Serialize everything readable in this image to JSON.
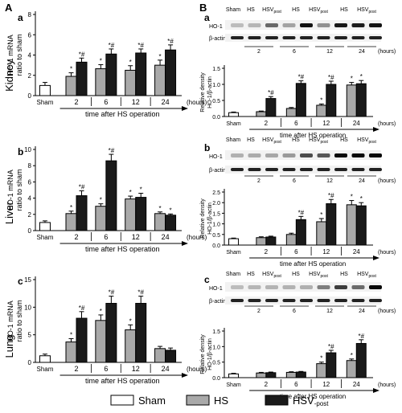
{
  "panel_labels": {
    "A": "A",
    "B": "B"
  },
  "organs": [
    "Kidney",
    "Liver",
    "Lung"
  ],
  "a_panel_letters": [
    "a",
    "b",
    "c"
  ],
  "b_panel_letters": [
    "a",
    "b",
    "c"
  ],
  "a_ylabel": [
    "HO-1 mRNA",
    "ratio to sham"
  ],
  "b_ylabel": [
    "Relative density",
    "HO-1/β-actin"
  ],
  "xlabel": "time after HS operation",
  "hours_label": "(hours)",
  "sham_label": "Sham",
  "blot_labels": {
    "ho1": "HO-1",
    "actin": "β-actin"
  },
  "blot_lane_headers": [
    "Sham",
    "HS",
    "HSV",
    "HS",
    "HSV",
    "HS",
    "HSV"
  ],
  "blot_lane_subscript": "post",
  "legend": [
    {
      "label": "Sham",
      "sub": "",
      "color": "#ffffff"
    },
    {
      "label": "HS",
      "sub": "",
      "color": "#a9a9a9"
    },
    {
      "label": "HSV",
      "sub": "-post",
      "color": "#1a1a1a"
    }
  ],
  "colors": {
    "sham": "#ffffff",
    "hs": "#a9a9a9",
    "hsv": "#1a1a1a"
  },
  "chart_data": [
    {
      "id": "A-a",
      "type": "bar",
      "organ": "Kidney",
      "panel": "a",
      "categories": [
        "2",
        "6",
        "12",
        "24"
      ],
      "yticks": [
        0,
        2,
        4,
        6,
        8
      ],
      "ylim": [
        0,
        8
      ],
      "sham": {
        "value": 1.0,
        "err": 0.3
      },
      "series": [
        {
          "name": "HS",
          "values": [
            1.9,
            2.65,
            2.5,
            3.0
          ],
          "err": [
            0.35,
            0.4,
            0.45,
            0.5
          ],
          "marks": [
            "*",
            "*",
            "*",
            "*"
          ]
        },
        {
          "name": "HSV",
          "values": [
            3.3,
            4.1,
            4.2,
            4.5
          ],
          "err": [
            0.4,
            0.5,
            0.4,
            0.5
          ],
          "marks": [
            "*#",
            "*#",
            "*#",
            "*#"
          ]
        }
      ]
    },
    {
      "id": "A-b",
      "type": "bar",
      "organ": "Liver",
      "panel": "b",
      "categories": [
        "2",
        "6",
        "12",
        "24"
      ],
      "yticks": [
        0,
        2,
        4,
        6,
        8,
        10
      ],
      "ylim": [
        0,
        10
      ],
      "sham": {
        "value": 1.0,
        "err": 0.2
      },
      "series": [
        {
          "name": "HS",
          "values": [
            2.1,
            3.0,
            3.9,
            2.1
          ],
          "err": [
            0.3,
            0.3,
            0.35,
            0.2
          ],
          "marks": [
            "*",
            "*",
            "*",
            "*"
          ]
        },
        {
          "name": "HSV",
          "values": [
            4.3,
            8.6,
            4.1,
            1.9
          ],
          "err": [
            0.6,
            0.8,
            0.5,
            0.15
          ],
          "marks": [
            "*#",
            "*#",
            "*",
            "*"
          ]
        }
      ]
    },
    {
      "id": "A-c",
      "type": "bar",
      "organ": "Lung",
      "panel": "c",
      "categories": [
        "2",
        "6",
        "12",
        "24"
      ],
      "yticks": [
        0,
        5,
        10,
        15
      ],
      "ylim": [
        0,
        15
      ],
      "sham": {
        "value": 1.2,
        "err": 0.3
      },
      "series": [
        {
          "name": "HS",
          "values": [
            3.7,
            7.6,
            5.9,
            2.5
          ],
          "err": [
            0.6,
            1.0,
            0.9,
            0.4
          ],
          "marks": [
            "*",
            "*",
            "*",
            ""
          ]
        },
        {
          "name": "HSV",
          "values": [
            8.0,
            10.7,
            10.7,
            2.2
          ],
          "err": [
            1.2,
            1.3,
            1.3,
            0.4
          ],
          "marks": [
            "*#",
            "*#",
            "*#",
            ""
          ]
        }
      ]
    },
    {
      "id": "B-a",
      "type": "bar",
      "organ": "Kidney",
      "panel": "a",
      "categories": [
        "2",
        "6",
        "12",
        "24"
      ],
      "yticks": [
        0.0,
        0.5,
        1.0,
        1.5
      ],
      "ylim": [
        0,
        1.5
      ],
      "sham": {
        "value": 0.12,
        "err": 0.02
      },
      "series": [
        {
          "name": "HS",
          "values": [
            0.15,
            0.25,
            0.35,
            0.98
          ],
          "err": [
            0.02,
            0.03,
            0.04,
            0.08
          ],
          "marks": [
            "",
            "",
            "*",
            "*"
          ]
        },
        {
          "name": "HSV",
          "values": [
            0.56,
            1.03,
            1.0,
            1.02
          ],
          "err": [
            0.06,
            0.08,
            0.1,
            0.1
          ],
          "marks": [
            "*#",
            "*#",
            "*#",
            "*"
          ]
        }
      ]
    },
    {
      "id": "B-b",
      "type": "bar",
      "organ": "Liver",
      "panel": "b",
      "categories": [
        "2",
        "6",
        "12",
        "24"
      ],
      "yticks": [
        0.0,
        0.5,
        1.0,
        1.5,
        2.0,
        2.5
      ],
      "ylim": [
        0,
        2.5
      ],
      "sham": {
        "value": 0.3,
        "err": 0.03
      },
      "series": [
        {
          "name": "HS",
          "values": [
            0.35,
            0.5,
            1.1,
            1.9
          ],
          "err": [
            0.04,
            0.06,
            0.15,
            0.2
          ],
          "marks": [
            "",
            "",
            "*",
            "*"
          ]
        },
        {
          "name": "HSV",
          "values": [
            0.38,
            1.2,
            1.95,
            1.85
          ],
          "err": [
            0.04,
            0.15,
            0.2,
            0.15
          ],
          "marks": [
            "",
            "*#",
            "*#",
            "*"
          ]
        }
      ]
    },
    {
      "id": "B-c",
      "type": "bar",
      "organ": "Lung",
      "panel": "c",
      "categories": [
        "2",
        "6",
        "12",
        "24"
      ],
      "yticks": [
        0.0,
        0.5,
        1.0,
        1.5
      ],
      "ylim": [
        0,
        1.5
      ],
      "sham": {
        "value": 0.12,
        "err": 0.02
      },
      "series": [
        {
          "name": "HS",
          "values": [
            0.15,
            0.17,
            0.45,
            0.55
          ],
          "err": [
            0.02,
            0.02,
            0.05,
            0.05
          ],
          "marks": [
            "",
            "",
            "*",
            "*"
          ]
        },
        {
          "name": "HSV",
          "values": [
            0.16,
            0.18,
            0.8,
            1.1
          ],
          "err": [
            0.02,
            0.02,
            0.08,
            0.12
          ],
          "marks": [
            "",
            "",
            "*#",
            "*#"
          ]
        }
      ]
    }
  ]
}
